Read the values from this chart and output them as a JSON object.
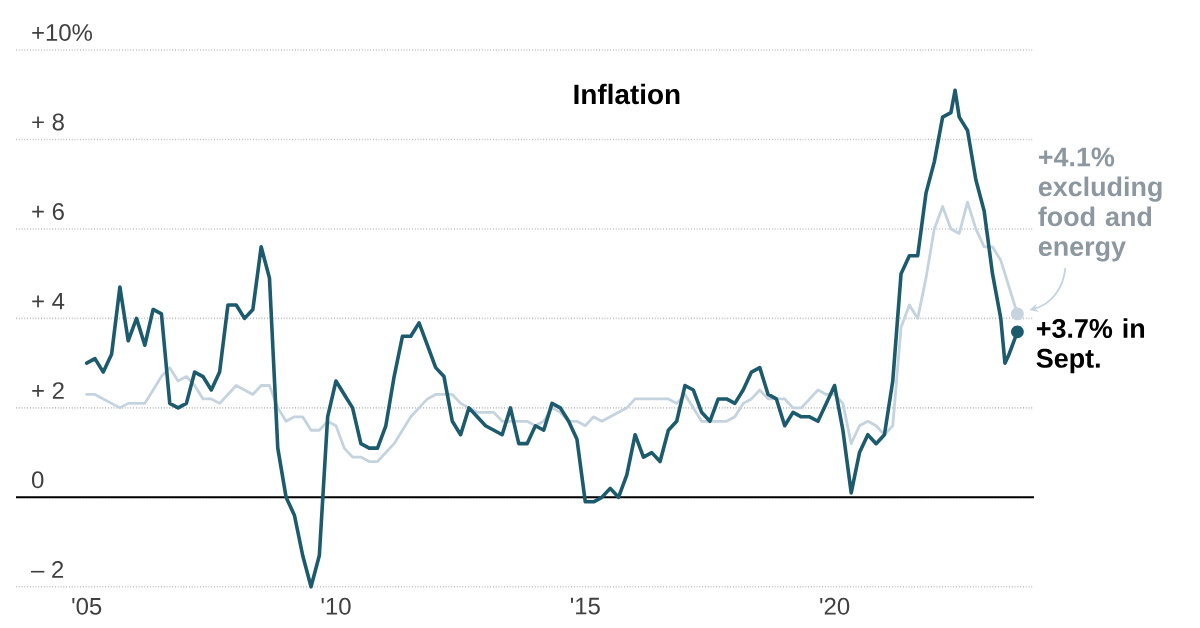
{
  "chart_data": {
    "type": "line",
    "title": "Inflation",
    "xlim": [
      "2003-08",
      "2024-01"
    ],
    "xticks": [
      {
        "value": "2005-01",
        "label": "'05"
      },
      {
        "value": "2010-01",
        "label": "'10"
      },
      {
        "value": "2015-01",
        "label": "'15"
      },
      {
        "value": "2020-01",
        "label": "'20"
      }
    ],
    "ylim": [
      -2,
      10
    ],
    "yticks": [
      {
        "value": -2,
        "label": "– 2"
      },
      0,
      {
        "value": 2,
        "label": "+ 2"
      },
      {
        "value": 4,
        "label": "+ 4"
      },
      {
        "value": 6,
        "label": "+ 6"
      },
      {
        "value": 8,
        "label": "+ 8"
      },
      {
        "value": 10,
        "label": "+10%"
      }
    ],
    "grid": "y",
    "ref_lines": [
      {
        "axis": "y",
        "value": 0,
        "color": "#000000"
      }
    ],
    "series": [
      {
        "color": "#c5d3de",
        "x": [
          "2005-01",
          "2005-03",
          "2005-05",
          "2005-07",
          "2005-09",
          "2005-11",
          "2006-01",
          "2006-03",
          "2006-05",
          "2006-07",
          "2006-09",
          "2006-11",
          "2007-01",
          "2007-03",
          "2007-05",
          "2007-07",
          "2007-09",
          "2007-11",
          "2008-01",
          "2008-03",
          "2008-05",
          "2008-07",
          "2008-09",
          "2008-11",
          "2009-01",
          "2009-03",
          "2009-05",
          "2009-07",
          "2009-09",
          "2009-11",
          "2010-01",
          "2010-03",
          "2010-05",
          "2010-07",
          "2010-09",
          "2010-11",
          "2011-01",
          "2011-03",
          "2011-05",
          "2011-07",
          "2011-09",
          "2011-11",
          "2012-01",
          "2012-03",
          "2012-05",
          "2012-07",
          "2012-09",
          "2012-11",
          "2013-01",
          "2013-03",
          "2013-05",
          "2013-07",
          "2013-09",
          "2013-11",
          "2014-01",
          "2014-03",
          "2014-05",
          "2014-07",
          "2014-09",
          "2014-11",
          "2015-01",
          "2015-03",
          "2015-05",
          "2015-07",
          "2015-09",
          "2015-11",
          "2016-01",
          "2016-03",
          "2016-05",
          "2016-07",
          "2016-09",
          "2016-11",
          "2017-01",
          "2017-03",
          "2017-05",
          "2017-07",
          "2017-09",
          "2017-11",
          "2018-01",
          "2018-03",
          "2018-05",
          "2018-07",
          "2018-09",
          "2018-11",
          "2019-01",
          "2019-03",
          "2019-05",
          "2019-07",
          "2019-09",
          "2019-11",
          "2020-01",
          "2020-03",
          "2020-05",
          "2020-07",
          "2020-09",
          "2020-11",
          "2021-01",
          "2021-03",
          "2021-05",
          "2021-07",
          "2021-09",
          "2021-11",
          "2022-01",
          "2022-03",
          "2022-05",
          "2022-07",
          "2022-09",
          "2022-11",
          "2023-01",
          "2023-03",
          "2023-05",
          "2023-07",
          "2023-09"
        ],
        "values": [
          2.3,
          2.3,
          2.2,
          2.1,
          2.0,
          2.1,
          2.1,
          2.1,
          2.4,
          2.7,
          2.9,
          2.6,
          2.7,
          2.5,
          2.2,
          2.2,
          2.1,
          2.3,
          2.5,
          2.4,
          2.3,
          2.5,
          2.5,
          2.0,
          1.7,
          1.8,
          1.8,
          1.5,
          1.5,
          1.7,
          1.6,
          1.1,
          0.9,
          0.9,
          0.8,
          0.8,
          1.0,
          1.2,
          1.5,
          1.8,
          2.0,
          2.2,
          2.3,
          2.3,
          2.3,
          2.1,
          2.0,
          1.9,
          1.9,
          1.9,
          1.7,
          1.7,
          1.7,
          1.7,
          1.6,
          1.7,
          2.0,
          1.9,
          1.7,
          1.7,
          1.6,
          1.8,
          1.7,
          1.8,
          1.9,
          2.0,
          2.2,
          2.2,
          2.2,
          2.2,
          2.2,
          2.1,
          2.3,
          2.0,
          1.7,
          1.7,
          1.7,
          1.7,
          1.8,
          2.1,
          2.2,
          2.4,
          2.2,
          2.2,
          2.2,
          2.0,
          2.0,
          2.2,
          2.4,
          2.3,
          2.3,
          2.1,
          1.2,
          1.6,
          1.7,
          1.6,
          1.4,
          1.6,
          3.8,
          4.3,
          4.0,
          4.9,
          6.0,
          6.5,
          6.0,
          5.9,
          6.6,
          6.0,
          5.6,
          5.6,
          5.3,
          4.7,
          4.1
        ]
      },
      {
        "color": "#1c5a6e",
        "x": [
          "2005-01",
          "2005-03",
          "2005-05",
          "2005-07",
          "2005-09",
          "2005-11",
          "2006-01",
          "2006-03",
          "2006-05",
          "2006-07",
          "2006-09",
          "2006-11",
          "2007-01",
          "2007-03",
          "2007-05",
          "2007-07",
          "2007-09",
          "2007-11",
          "2008-01",
          "2008-03",
          "2008-05",
          "2008-07",
          "2008-09",
          "2008-11",
          "2009-01",
          "2009-03",
          "2009-05",
          "2009-07",
          "2009-09",
          "2009-11",
          "2010-01",
          "2010-03",
          "2010-05",
          "2010-07",
          "2010-09",
          "2010-11",
          "2011-01",
          "2011-03",
          "2011-05",
          "2011-07",
          "2011-09",
          "2011-11",
          "2012-01",
          "2012-03",
          "2012-05",
          "2012-07",
          "2012-09",
          "2012-11",
          "2013-01",
          "2013-03",
          "2013-05",
          "2013-07",
          "2013-09",
          "2013-11",
          "2014-01",
          "2014-03",
          "2014-05",
          "2014-07",
          "2014-09",
          "2014-11",
          "2015-01",
          "2015-03",
          "2015-05",
          "2015-07",
          "2015-09",
          "2015-11",
          "2016-01",
          "2016-03",
          "2016-05",
          "2016-07",
          "2016-09",
          "2016-11",
          "2017-01",
          "2017-03",
          "2017-05",
          "2017-07",
          "2017-09",
          "2017-11",
          "2018-01",
          "2018-03",
          "2018-05",
          "2018-07",
          "2018-09",
          "2018-11",
          "2019-01",
          "2019-03",
          "2019-05",
          "2019-07",
          "2019-09",
          "2019-11",
          "2020-01",
          "2020-03",
          "2020-05",
          "2020-07",
          "2020-09",
          "2020-11",
          "2021-01",
          "2021-03",
          "2021-05",
          "2021-07",
          "2021-09",
          "2021-11",
          "2022-01",
          "2022-03",
          "2022-05",
          "2022-06",
          "2022-07",
          "2022-09",
          "2022-11",
          "2023-01",
          "2023-03",
          "2023-05",
          "2023-06",
          "2023-07",
          "2023-09"
        ],
        "values": [
          3.0,
          3.1,
          2.8,
          3.2,
          4.7,
          3.5,
          4.0,
          3.4,
          4.2,
          4.1,
          2.1,
          2.0,
          2.1,
          2.8,
          2.7,
          2.4,
          2.8,
          4.3,
          4.3,
          4.0,
          4.2,
          5.6,
          4.9,
          1.1,
          0.0,
          -0.4,
          -1.3,
          -2.0,
          -1.3,
          1.8,
          2.6,
          2.3,
          2.0,
          1.2,
          1.1,
          1.1,
          1.6,
          2.7,
          3.6,
          3.6,
          3.9,
          3.4,
          2.9,
          2.7,
          1.7,
          1.4,
          2.0,
          1.8,
          1.6,
          1.5,
          1.4,
          2.0,
          1.2,
          1.2,
          1.6,
          1.5,
          2.1,
          2.0,
          1.7,
          1.3,
          -0.1,
          -0.1,
          0.0,
          0.2,
          0.0,
          0.5,
          1.4,
          0.9,
          1.0,
          0.8,
          1.5,
          1.7,
          2.5,
          2.4,
          1.9,
          1.7,
          2.2,
          2.2,
          2.1,
          2.4,
          2.8,
          2.9,
          2.3,
          2.2,
          1.6,
          1.9,
          1.8,
          1.8,
          1.7,
          2.1,
          2.5,
          1.5,
          0.1,
          1.0,
          1.4,
          1.2,
          1.4,
          2.6,
          5.0,
          5.4,
          5.4,
          6.8,
          7.5,
          8.5,
          8.6,
          9.1,
          8.5,
          8.2,
          7.1,
          6.4,
          5.0,
          4.0,
          3.0,
          3.2,
          3.7
        ]
      }
    ],
    "annotations": [
      {
        "text": "+4.1% excluding food and energy",
        "x": "2023-09",
        "y": 4.1
      },
      {
        "text": "+3.7% in Sept.",
        "x": "2023-09",
        "y": 3.7
      }
    ]
  }
}
